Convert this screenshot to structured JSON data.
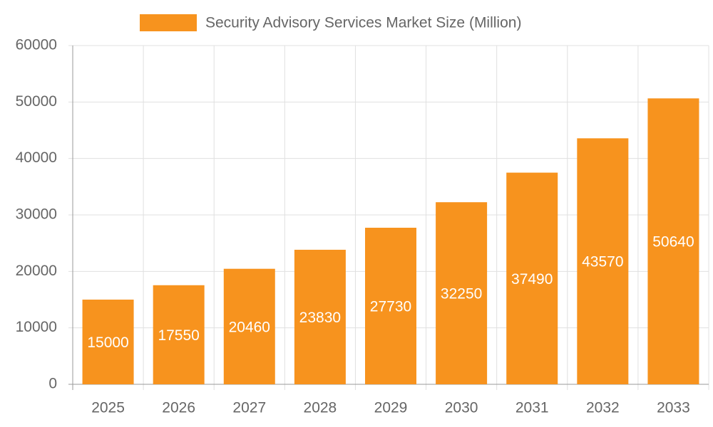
{
  "chart_data": {
    "type": "bar",
    "categories": [
      "2025",
      "2026",
      "2027",
      "2028",
      "2029",
      "2030",
      "2031",
      "2032",
      "2033"
    ],
    "series": [
      {
        "name": "Security Advisory Services Market Size (Million)",
        "color": "#f7931e",
        "values": [
          15000,
          17550,
          20460,
          23830,
          27730,
          32250,
          37490,
          43570,
          50640
        ]
      }
    ],
    "ylim": [
      0,
      60000
    ],
    "yticks": [
      0,
      10000,
      20000,
      30000,
      40000,
      50000,
      60000
    ],
    "grid": true,
    "legend": "top",
    "data_labels": true
  }
}
